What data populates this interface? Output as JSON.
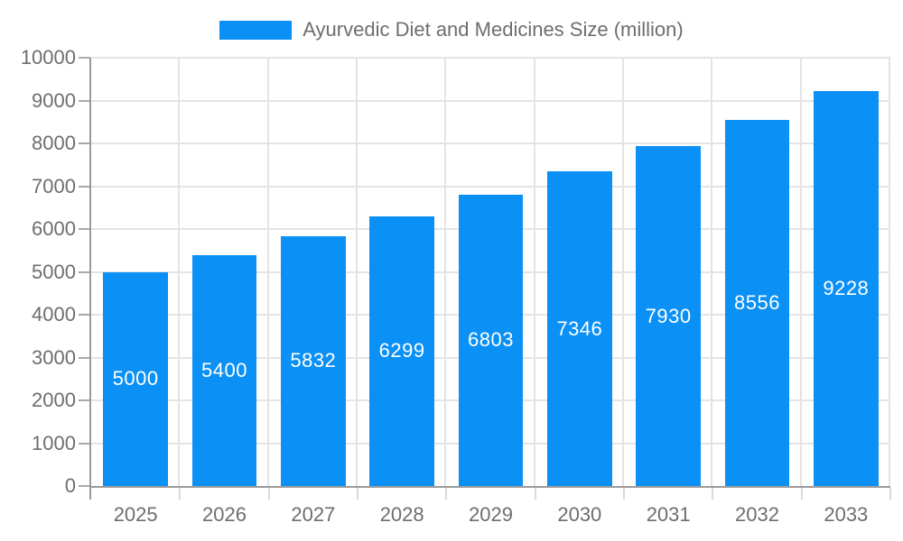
{
  "chart_data": {
    "type": "bar",
    "title": "Ayurvedic Diet and Medicines Size (million)",
    "categories": [
      "2025",
      "2026",
      "2027",
      "2028",
      "2029",
      "2030",
      "2031",
      "2032",
      "2033"
    ],
    "values": [
      5000,
      5400,
      5832,
      6299,
      6803,
      7346,
      7930,
      8556,
      9228
    ],
    "xlabel": "",
    "ylabel": "",
    "ylim": [
      0,
      10000
    ],
    "ytick_step": 1000,
    "ytick_labels": [
      "0",
      "1000",
      "2000",
      "3000",
      "4000",
      "5000",
      "6000",
      "7000",
      "8000",
      "9000",
      "10000"
    ],
    "grid": true,
    "legend_position": "top-center",
    "show_value_labels": true,
    "value_label_position": "bar-center",
    "colors": {
      "bar": "#0b90f5",
      "value_label": "#ffffff",
      "axis": "#9a9a9a",
      "grid": "#e4e4e4",
      "tick": "#a9a9a9",
      "minor_tick": "#d9d9d9",
      "label_text": "#6e6e6e",
      "background": "#ffffff"
    }
  }
}
